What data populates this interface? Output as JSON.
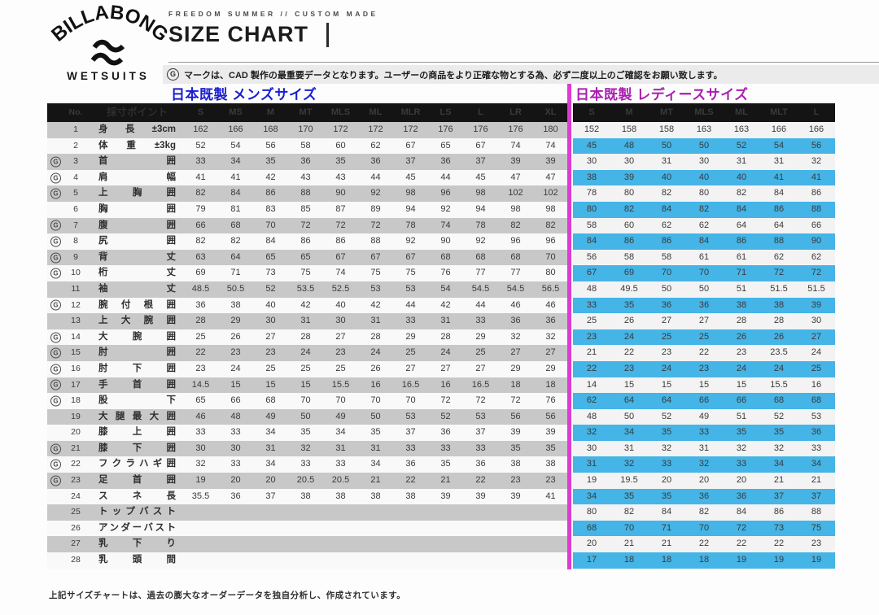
{
  "header": {
    "brand": "BILLABONG",
    "brand_sub": "WETSUITS",
    "tagline": "FREEDOM SUMMER // CUSTOM MADE",
    "title": "SIZE CHART"
  },
  "note": {
    "mark": "G",
    "text": "マークは、CAD 製作の最重要データとなります。ユーザーの商品をより正確な物とする為、必ず二度以上のご確認をお願い致します。"
  },
  "sections": {
    "mens": {
      "title": "日本既製 メンズサイズ",
      "color": "#1a1ecf",
      "sizes": [
        "S",
        "MS",
        "M",
        "MT",
        "MLS",
        "ML",
        "MLR",
        "LS",
        "L",
        "LR",
        "XL"
      ]
    },
    "ladies": {
      "title": "日本既製 レディースサイズ",
      "color": "#aa1fb0",
      "sizes": [
        "S",
        "M",
        "MT",
        "MLS",
        "ML",
        "MLT",
        "L"
      ]
    }
  },
  "colors": {
    "mens_stripe": "#c8c8c8",
    "ladies_stripe": "#45b4e6",
    "divider": "#dd3bd2",
    "header_bg": "#141414"
  },
  "table": {
    "col_no": "No.",
    "col_point": "採寸ポイント",
    "rows": [
      {
        "no": "1",
        "cad": false,
        "label": "身 長 ±3cm",
        "mens": [
          "162",
          "166",
          "168",
          "170",
          "172",
          "172",
          "172",
          "176",
          "176",
          "176",
          "180"
        ],
        "ladies": [
          "152",
          "158",
          "158",
          "163",
          "163",
          "166",
          "166"
        ]
      },
      {
        "no": "2",
        "cad": false,
        "label": "体 重 ±3kg",
        "mens": [
          "52",
          "54",
          "56",
          "58",
          "60",
          "62",
          "67",
          "65",
          "67",
          "74",
          "74"
        ],
        "ladies": [
          "45",
          "48",
          "50",
          "50",
          "52",
          "54",
          "56"
        ]
      },
      {
        "no": "3",
        "cad": true,
        "label": "首 囲",
        "mens": [
          "33",
          "34",
          "35",
          "36",
          "35",
          "36",
          "37",
          "36",
          "37",
          "39",
          "39"
        ],
        "ladies": [
          "30",
          "30",
          "31",
          "30",
          "31",
          "31",
          "32"
        ]
      },
      {
        "no": "4",
        "cad": true,
        "label": "肩 幅",
        "mens": [
          "41",
          "41",
          "42",
          "43",
          "43",
          "44",
          "45",
          "44",
          "45",
          "47",
          "47"
        ],
        "ladies": [
          "38",
          "39",
          "40",
          "40",
          "40",
          "41",
          "41"
        ]
      },
      {
        "no": "5",
        "cad": true,
        "label": "上 胸 囲",
        "mens": [
          "82",
          "84",
          "86",
          "88",
          "90",
          "92",
          "98",
          "96",
          "98",
          "102",
          "102"
        ],
        "ladies": [
          "78",
          "80",
          "82",
          "80",
          "82",
          "84",
          "86"
        ]
      },
      {
        "no": "6",
        "cad": false,
        "label": "胸 囲",
        "mens": [
          "79",
          "81",
          "83",
          "85",
          "87",
          "89",
          "94",
          "92",
          "94",
          "98",
          "98"
        ],
        "ladies": [
          "80",
          "82",
          "84",
          "82",
          "84",
          "86",
          "88"
        ]
      },
      {
        "no": "7",
        "cad": true,
        "label": "腹 囲",
        "mens": [
          "66",
          "68",
          "70",
          "72",
          "72",
          "72",
          "78",
          "74",
          "78",
          "82",
          "82"
        ],
        "ladies": [
          "58",
          "60",
          "62",
          "62",
          "64",
          "64",
          "66"
        ]
      },
      {
        "no": "8",
        "cad": true,
        "label": "尻 囲",
        "mens": [
          "82",
          "82",
          "84",
          "86",
          "86",
          "88",
          "92",
          "90",
          "92",
          "96",
          "96"
        ],
        "ladies": [
          "84",
          "86",
          "86",
          "84",
          "86",
          "88",
          "90"
        ]
      },
      {
        "no": "9",
        "cad": true,
        "label": "背 丈",
        "mens": [
          "63",
          "64",
          "65",
          "65",
          "67",
          "67",
          "67",
          "68",
          "68",
          "68",
          "70"
        ],
        "ladies": [
          "56",
          "58",
          "58",
          "61",
          "61",
          "62",
          "62"
        ]
      },
      {
        "no": "10",
        "cad": true,
        "label": "桁 丈",
        "mens": [
          "69",
          "71",
          "73",
          "75",
          "74",
          "75",
          "75",
          "76",
          "77",
          "77",
          "80"
        ],
        "ladies": [
          "67",
          "69",
          "70",
          "70",
          "71",
          "72",
          "72"
        ]
      },
      {
        "no": "11",
        "cad": false,
        "label": "袖 丈",
        "mens": [
          "48.5",
          "50.5",
          "52",
          "53.5",
          "52.5",
          "53",
          "53",
          "54",
          "54.5",
          "54.5",
          "56.5"
        ],
        "ladies": [
          "48",
          "49.5",
          "50",
          "50",
          "51",
          "51.5",
          "51.5"
        ]
      },
      {
        "no": "12",
        "cad": true,
        "label": "腕 付 根 囲",
        "mens": [
          "36",
          "38",
          "40",
          "42",
          "40",
          "42",
          "44",
          "42",
          "44",
          "46",
          "46"
        ],
        "ladies": [
          "33",
          "35",
          "36",
          "36",
          "38",
          "38",
          "39"
        ]
      },
      {
        "no": "13",
        "cad": false,
        "label": "上 大 腕 囲",
        "mens": [
          "28",
          "29",
          "30",
          "31",
          "30",
          "31",
          "33",
          "31",
          "33",
          "36",
          "36"
        ],
        "ladies": [
          "25",
          "26",
          "27",
          "27",
          "28",
          "28",
          "30"
        ]
      },
      {
        "no": "14",
        "cad": true,
        "label": "大 腕 囲",
        "mens": [
          "25",
          "26",
          "27",
          "28",
          "27",
          "28",
          "29",
          "28",
          "29",
          "32",
          "32"
        ],
        "ladies": [
          "23",
          "24",
          "25",
          "25",
          "26",
          "26",
          "27"
        ]
      },
      {
        "no": "15",
        "cad": true,
        "label": "肘 囲",
        "mens": [
          "22",
          "23",
          "23",
          "24",
          "23",
          "24",
          "25",
          "24",
          "25",
          "27",
          "27"
        ],
        "ladies": [
          "21",
          "22",
          "23",
          "22",
          "23",
          "23.5",
          "24"
        ]
      },
      {
        "no": "16",
        "cad": true,
        "label": "肘 下 囲",
        "mens": [
          "23",
          "24",
          "25",
          "25",
          "25",
          "26",
          "27",
          "27",
          "27",
          "29",
          "29"
        ],
        "ladies": [
          "22",
          "23",
          "24",
          "23",
          "24",
          "24",
          "25"
        ]
      },
      {
        "no": "17",
        "cad": true,
        "label": "手 首 囲",
        "mens": [
          "14.5",
          "15",
          "15",
          "15",
          "15.5",
          "16",
          "16.5",
          "16",
          "16.5",
          "18",
          "18"
        ],
        "ladies": [
          "14",
          "15",
          "15",
          "15",
          "15",
          "15.5",
          "16"
        ]
      },
      {
        "no": "18",
        "cad": true,
        "label": "股 下",
        "mens": [
          "65",
          "66",
          "68",
          "70",
          "70",
          "70",
          "70",
          "72",
          "72",
          "72",
          "76"
        ],
        "ladies": [
          "62",
          "64",
          "64",
          "66",
          "66",
          "68",
          "68"
        ]
      },
      {
        "no": "19",
        "cad": false,
        "label": "大 腿 最 大 囲",
        "mens": [
          "46",
          "48",
          "49",
          "50",
          "49",
          "50",
          "53",
          "52",
          "53",
          "56",
          "56"
        ],
        "ladies": [
          "48",
          "50",
          "52",
          "49",
          "51",
          "52",
          "53"
        ]
      },
      {
        "no": "20",
        "cad": false,
        "label": "膝 上 囲",
        "mens": [
          "33",
          "33",
          "34",
          "35",
          "34",
          "35",
          "37",
          "36",
          "37",
          "39",
          "39"
        ],
        "ladies": [
          "32",
          "34",
          "35",
          "33",
          "35",
          "35",
          "36"
        ]
      },
      {
        "no": "21",
        "cad": true,
        "label": "膝 下 囲",
        "mens": [
          "30",
          "30",
          "31",
          "32",
          "31",
          "31",
          "33",
          "33",
          "33",
          "35",
          "35"
        ],
        "ladies": [
          "30",
          "31",
          "32",
          "31",
          "32",
          "32",
          "33"
        ]
      },
      {
        "no": "22",
        "cad": true,
        "label": "フクラハギ囲",
        "mens": [
          "32",
          "33",
          "34",
          "33",
          "33",
          "34",
          "36",
          "35",
          "36",
          "38",
          "38"
        ],
        "ladies": [
          "31",
          "32",
          "33",
          "32",
          "33",
          "34",
          "34"
        ]
      },
      {
        "no": "23",
        "cad": true,
        "label": "足 首 囲",
        "mens": [
          "19",
          "20",
          "20",
          "20.5",
          "20.5",
          "21",
          "22",
          "21",
          "22",
          "23",
          "23"
        ],
        "ladies": [
          "19",
          "19.5",
          "20",
          "20",
          "20",
          "21",
          "21"
        ]
      },
      {
        "no": "24",
        "cad": false,
        "label": "ス ネ 長",
        "mens": [
          "35.5",
          "36",
          "37",
          "38",
          "38",
          "38",
          "38",
          "39",
          "39",
          "39",
          "41"
        ],
        "ladies": [
          "34",
          "35",
          "35",
          "36",
          "36",
          "37",
          "37"
        ]
      },
      {
        "no": "25",
        "cad": false,
        "label": "トップバスト",
        "mens": [
          "",
          "",
          "",
          "",
          "",
          "",
          "",
          "",
          "",
          "",
          ""
        ],
        "ladies": [
          "80",
          "82",
          "84",
          "82",
          "84",
          "86",
          "88"
        ]
      },
      {
        "no": "26",
        "cad": false,
        "label": "アンダーバスト",
        "mens": [
          "",
          "",
          "",
          "",
          "",
          "",
          "",
          "",
          "",
          "",
          ""
        ],
        "ladies": [
          "68",
          "70",
          "71",
          "70",
          "72",
          "73",
          "75"
        ]
      },
      {
        "no": "27",
        "cad": false,
        "label": "乳 下 り",
        "mens": [
          "",
          "",
          "",
          "",
          "",
          "",
          "",
          "",
          "",
          "",
          ""
        ],
        "ladies": [
          "20",
          "21",
          "21",
          "22",
          "22",
          "22",
          "23"
        ]
      },
      {
        "no": "28",
        "cad": false,
        "label": "乳 頭 間",
        "mens": [
          "",
          "",
          "",
          "",
          "",
          "",
          "",
          "",
          "",
          "",
          ""
        ],
        "ladies": [
          "17",
          "18",
          "18",
          "18",
          "19",
          "19",
          "19"
        ]
      }
    ]
  },
  "footer": "上記サイズチャートは、過去の膨大なオーダーデータを独自分析し、作成されています。"
}
